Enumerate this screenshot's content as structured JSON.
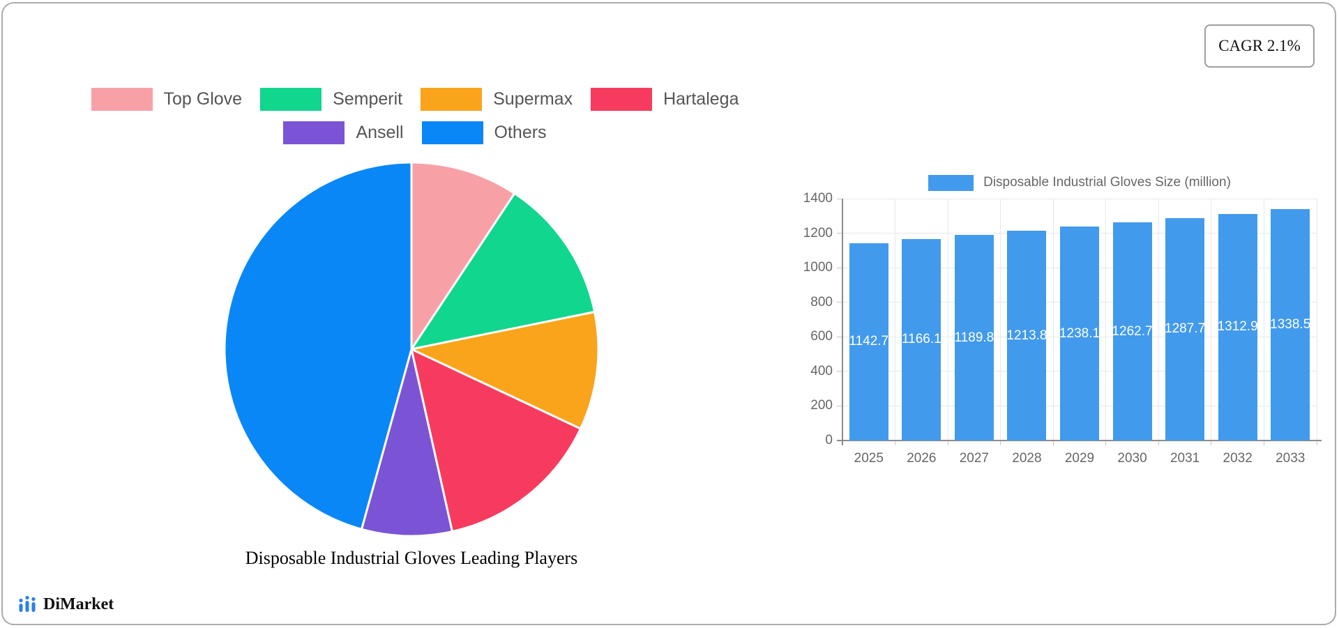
{
  "cagr_label": "CAGR 2.1%",
  "brand": {
    "name": "DiMarket"
  },
  "chart_data": [
    {
      "type": "pie",
      "title": "Disposable Industrial Gloves Leading Players",
      "labels": [
        "Top Glove",
        "Semperit",
        "Supermax",
        "Hartalega",
        "Ansell",
        "Others"
      ],
      "values": [
        9.3,
        12.5,
        10.2,
        14.5,
        7.8,
        45.7
      ],
      "colors": [
        "#f7a1a7",
        "#10d68e",
        "#f9a41b",
        "#f63b5e",
        "#7b54d5",
        "#0a87f6"
      ],
      "legend_position": "top",
      "legend_rows": [
        [
          0,
          1,
          2,
          3
        ],
        [
          4,
          5
        ]
      ],
      "start_angle_deg": 0,
      "direction": "clockwise"
    },
    {
      "type": "bar",
      "legend_label": "Disposable Industrial Gloves Size (million)",
      "categories": [
        "2025",
        "2026",
        "2027",
        "2028",
        "2029",
        "2030",
        "2031",
        "2032",
        "2033"
      ],
      "values": [
        1142.7,
        1166.1,
        1189.8,
        1213.8,
        1238.1,
        1262.7,
        1287.7,
        1312.9,
        1338.5
      ],
      "bar_color": "#429aec",
      "value_label_color": "#ffffff",
      "ylim": [
        0,
        1400
      ],
      "y_ticks": [
        0,
        200,
        400,
        600,
        800,
        1000,
        1200,
        1400
      ],
      "grid": true
    }
  ]
}
